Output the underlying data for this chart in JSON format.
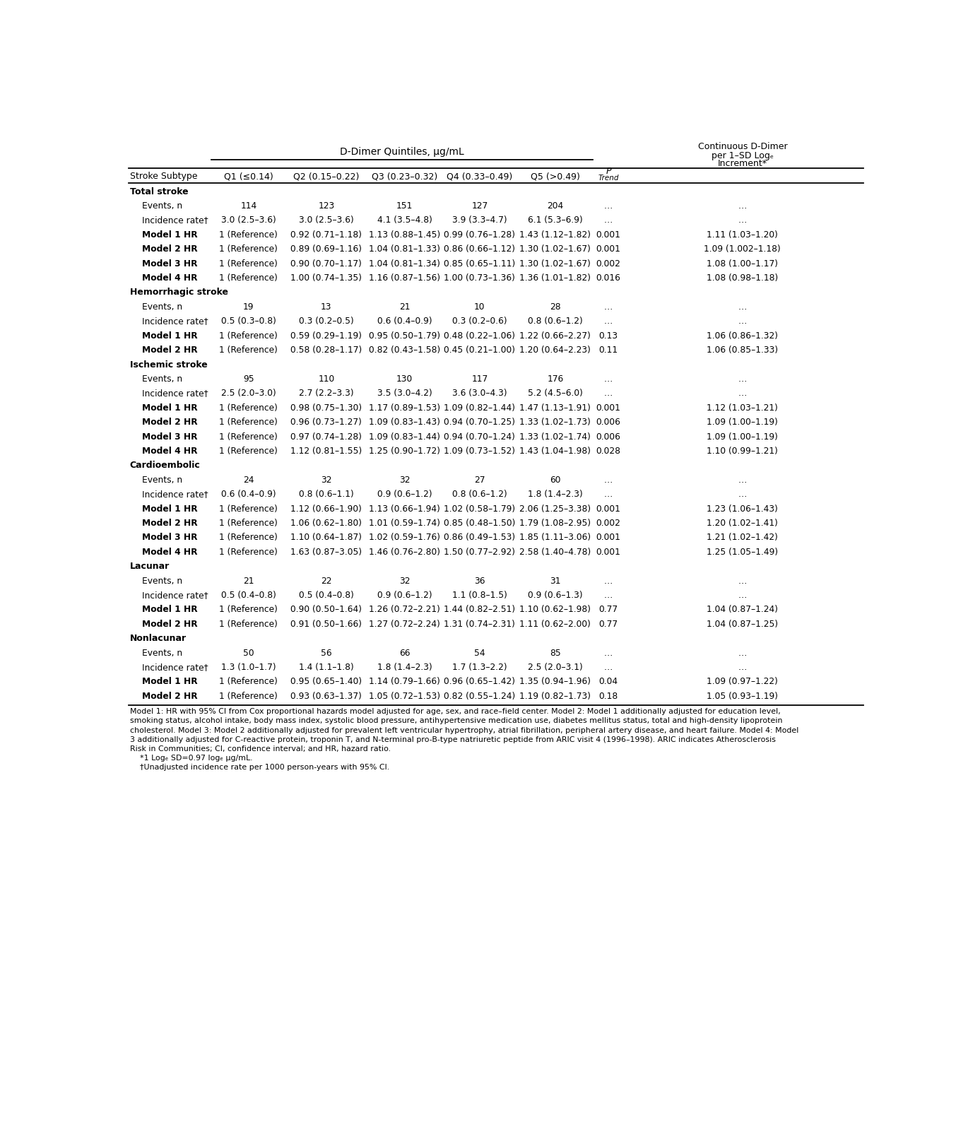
{
  "sections": [
    {
      "header": "Total stroke",
      "rows": [
        {
          "label": "Events, n",
          "indent": true,
          "bold": false,
          "values": [
            "114",
            "123",
            "151",
            "127",
            "204",
            "…",
            "…"
          ]
        },
        {
          "label": "Incidence rate†",
          "indent": true,
          "bold": false,
          "values": [
            "3.0 (2.5–3.6)",
            "3.0 (2.5–3.6)",
            "4.1 (3.5–4.8)",
            "3.9 (3.3–4.7)",
            "6.1 (5.3–6.9)",
            "…",
            "…"
          ]
        },
        {
          "label": "Model 1 HR",
          "indent": true,
          "bold": true,
          "values": [
            "1 (Reference)",
            "0.92 (0.71–1.18)",
            "1.13 (0.88–1.45)",
            "0.99 (0.76–1.28)",
            "1.43 (1.12–1.82)",
            "0.001",
            "1.11 (1.03–1.20)"
          ]
        },
        {
          "label": "Model 2 HR",
          "indent": true,
          "bold": true,
          "values": [
            "1 (Reference)",
            "0.89 (0.69–1.16)",
            "1.04 (0.81–1.33)",
            "0.86 (0.66–1.12)",
            "1.30 (1.02–1.67)",
            "0.001",
            "1.09 (1.002–1.18)"
          ]
        },
        {
          "label": "Model 3 HR",
          "indent": true,
          "bold": true,
          "values": [
            "1 (Reference)",
            "0.90 (0.70–1.17)",
            "1.04 (0.81–1.34)",
            "0.85 (0.65–1.11)",
            "1.30 (1.02–1.67)",
            "0.002",
            "1.08 (1.00–1.17)"
          ]
        },
        {
          "label": "Model 4 HR",
          "indent": true,
          "bold": true,
          "values": [
            "1 (Reference)",
            "1.00 (0.74–1.35)",
            "1.16 (0.87–1.56)",
            "1.00 (0.73–1.36)",
            "1.36 (1.01–1.82)",
            "0.016",
            "1.08 (0.98–1.18)"
          ]
        }
      ]
    },
    {
      "header": "Hemorrhagic stroke",
      "rows": [
        {
          "label": "Events, n",
          "indent": true,
          "bold": false,
          "values": [
            "19",
            "13",
            "21",
            "10",
            "28",
            "…",
            "…"
          ]
        },
        {
          "label": "Incidence rate†",
          "indent": true,
          "bold": false,
          "values": [
            "0.5 (0.3–0.8)",
            "0.3 (0.2–0.5)",
            "0.6 (0.4–0.9)",
            "0.3 (0.2–0.6)",
            "0.8 (0.6–1.2)",
            "…",
            "…"
          ]
        },
        {
          "label": "Model 1 HR",
          "indent": true,
          "bold": true,
          "values": [
            "1 (Reference)",
            "0.59 (0.29–1.19)",
            "0.95 (0.50–1.79)",
            "0.48 (0.22–1.06)",
            "1.22 (0.66–2.27)",
            "0.13",
            "1.06 (0.86–1.32)"
          ]
        },
        {
          "label": "Model 2 HR",
          "indent": true,
          "bold": true,
          "values": [
            "1 (Reference)",
            "0.58 (0.28–1.17)",
            "0.82 (0.43–1.58)",
            "0.45 (0.21–1.00)",
            "1.20 (0.64–2.23)",
            "0.11",
            "1.06 (0.85–1.33)"
          ]
        }
      ]
    },
    {
      "header": "Ischemic stroke",
      "rows": [
        {
          "label": "Events, n",
          "indent": true,
          "bold": false,
          "values": [
            "95",
            "110",
            "130",
            "117",
            "176",
            "…",
            "…"
          ]
        },
        {
          "label": "Incidence rate†",
          "indent": true,
          "bold": false,
          "values": [
            "2.5 (2.0–3.0)",
            "2.7 (2.2–3.3)",
            "3.5 (3.0–4.2)",
            "3.6 (3.0–4.3)",
            "5.2 (4.5–6.0)",
            "…",
            "…"
          ]
        },
        {
          "label": "Model 1 HR",
          "indent": true,
          "bold": true,
          "values": [
            "1 (Reference)",
            "0.98 (0.75–1.30)",
            "1.17 (0.89–1.53)",
            "1.09 (0.82–1.44)",
            "1.47 (1.13–1.91)",
            "0.001",
            "1.12 (1.03–1.21)"
          ]
        },
        {
          "label": "Model 2 HR",
          "indent": true,
          "bold": true,
          "values": [
            "1 (Reference)",
            "0.96 (0.73–1.27)",
            "1.09 (0.83–1.43)",
            "0.94 (0.70–1.25)",
            "1.33 (1.02–1.73)",
            "0.006",
            "1.09 (1.00–1.19)"
          ]
        },
        {
          "label": "Model 3 HR",
          "indent": true,
          "bold": true,
          "values": [
            "1 (Reference)",
            "0.97 (0.74–1.28)",
            "1.09 (0.83–1.44)",
            "0.94 (0.70–1.24)",
            "1.33 (1.02–1.74)",
            "0.006",
            "1.09 (1.00–1.19)"
          ]
        },
        {
          "label": "Model 4 HR",
          "indent": true,
          "bold": true,
          "values": [
            "1 (Reference)",
            "1.12 (0.81–1.55)",
            "1.25 (0.90–1.72)",
            "1.09 (0.73–1.52)",
            "1.43 (1.04–1.98)",
            "0.028",
            "1.10 (0.99–1.21)"
          ]
        }
      ]
    },
    {
      "header": "Cardioembolic",
      "rows": [
        {
          "label": "Events, n",
          "indent": true,
          "bold": false,
          "values": [
            "24",
            "32",
            "32",
            "27",
            "60",
            "…",
            "…"
          ]
        },
        {
          "label": "Incidence rate†",
          "indent": true,
          "bold": false,
          "values": [
            "0.6 (0.4–0.9)",
            "0.8 (0.6–1.1)",
            "0.9 (0.6–1.2)",
            "0.8 (0.6–1.2)",
            "1.8 (1.4–2.3)",
            "…",
            "…"
          ]
        },
        {
          "label": "Model 1 HR",
          "indent": true,
          "bold": true,
          "values": [
            "1 (Reference)",
            "1.12 (0.66–1.90)",
            "1.13 (0.66–1.94)",
            "1.02 (0.58–1.79)",
            "2.06 (1.25–3.38)",
            "0.001",
            "1.23 (1.06–1.43)"
          ]
        },
        {
          "label": "Model 2 HR",
          "indent": true,
          "bold": true,
          "values": [
            "1 (Reference)",
            "1.06 (0.62–1.80)",
            "1.01 (0.59–1.74)",
            "0.85 (0.48–1.50)",
            "1.79 (1.08–2.95)",
            "0.002",
            "1.20 (1.02–1.41)"
          ]
        },
        {
          "label": "Model 3 HR",
          "indent": true,
          "bold": true,
          "values": [
            "1 (Reference)",
            "1.10 (0.64–1.87)",
            "1.02 (0.59–1.76)",
            "0.86 (0.49–1.53)",
            "1.85 (1.11–3.06)",
            "0.001",
            "1.21 (1.02–1.42)"
          ]
        },
        {
          "label": "Model 4 HR",
          "indent": true,
          "bold": true,
          "values": [
            "1 (Reference)",
            "1.63 (0.87–3.05)",
            "1.46 (0.76–2.80)",
            "1.50 (0.77–2.92)",
            "2.58 (1.40–4.78)",
            "0.001",
            "1.25 (1.05–1.49)"
          ]
        }
      ]
    },
    {
      "header": "Lacunar",
      "rows": [
        {
          "label": "Events, n",
          "indent": true,
          "bold": false,
          "values": [
            "21",
            "22",
            "32",
            "36",
            "31",
            "…",
            "…"
          ]
        },
        {
          "label": "Incidence rate†",
          "indent": true,
          "bold": false,
          "values": [
            "0.5 (0.4–0.8)",
            "0.5 (0.4–0.8)",
            "0.9 (0.6–1.2)",
            "1.1 (0.8–1.5)",
            "0.9 (0.6–1.3)",
            "…",
            "…"
          ]
        },
        {
          "label": "Model 1 HR",
          "indent": true,
          "bold": true,
          "values": [
            "1 (Reference)",
            "0.90 (0.50–1.64)",
            "1.26 (0.72–2.21)",
            "1.44 (0.82–2.51)",
            "1.10 (0.62–1.98)",
            "0.77",
            "1.04 (0.87–1.24)"
          ]
        },
        {
          "label": "Model 2 HR",
          "indent": true,
          "bold": true,
          "values": [
            "1 (Reference)",
            "0.91 (0.50–1.66)",
            "1.27 (0.72–2.24)",
            "1.31 (0.74–2.31)",
            "1.11 (0.62–2.00)",
            "0.77",
            "1.04 (0.87–1.25)"
          ]
        }
      ]
    },
    {
      "header": "Nonlacunar",
      "rows": [
        {
          "label": "Events, n",
          "indent": true,
          "bold": false,
          "values": [
            "50",
            "56",
            "66",
            "54",
            "85",
            "…",
            "…"
          ]
        },
        {
          "label": "Incidence rate†",
          "indent": true,
          "bold": false,
          "values": [
            "1.3 (1.0–1.7)",
            "1.4 (1.1–1.8)",
            "1.8 (1.4–2.3)",
            "1.7 (1.3–2.2)",
            "2.5 (2.0–3.1)",
            "…",
            "…"
          ]
        },
        {
          "label": "Model 1 HR",
          "indent": true,
          "bold": true,
          "values": [
            "1 (Reference)",
            "0.95 (0.65–1.40)",
            "1.14 (0.79–1.66)",
            "0.96 (0.65–1.42)",
            "1.35 (0.94–1.96)",
            "0.04",
            "1.09 (0.97–1.22)"
          ]
        },
        {
          "label": "Model 2 HR",
          "indent": true,
          "bold": true,
          "values": [
            "1 (Reference)",
            "0.93 (0.63–1.37)",
            "1.05 (0.72–1.53)",
            "0.82 (0.55–1.24)",
            "1.19 (0.82–1.73)",
            "0.18",
            "1.05 (0.93–1.19)"
          ]
        }
      ]
    }
  ],
  "footnote_lines": [
    "Model 1: HR with 95% CI from Cox proportional hazards model adjusted for age, sex, and race–field center. Model 2: Model 1 additionally adjusted for education level,",
    "smoking status, alcohol intake, body mass index, systolic blood pressure, antihypertensive medication use, diabetes mellitus status, total and high-density lipoprotein",
    "cholesterol. Model 3: Model 2 additionally adjusted for prevalent left ventricular hypertrophy, atrial fibrillation, peripheral artery disease, and heart failure. Model 4: Model",
    "3 additionally adjusted for C-reactive protein, troponin T, and N-terminal pro-B-type natriuretic peptide from ARIC visit 4 (1996–1998). ARIC indicates Atherosclerosis",
    "Risk in Communities; CI, confidence interval; and HR, hazard ratio.",
    "*1 Logₑ SD=0.97 logₑ µg/mL.",
    "†Unadjusted incidence rate per 1000 person-years with 95% CI."
  ],
  "figsize": [
    13.7,
    16.12
  ],
  "dpi": 100,
  "col_header_label": "Stroke Subtype",
  "quintile_header": "D-Dimer Quintiles, µg/mL",
  "continuous_header_line1": "Continuous",
  "continuous_header_line1b": "D-Dimer",
  "continuous_header_line2": "per 1–SD Logₑ",
  "continuous_header_line3": "Increment*",
  "q_labels": [
    "Q1 (≤0.14)",
    "Q2 (0.15–0.22)",
    "Q3 (0.23–0.32)",
    "Q4 (0.33–0.49)",
    "Q5 (>0.49)"
  ],
  "p_trend_label_top": "P",
  "p_trend_label_bot": "Trend"
}
